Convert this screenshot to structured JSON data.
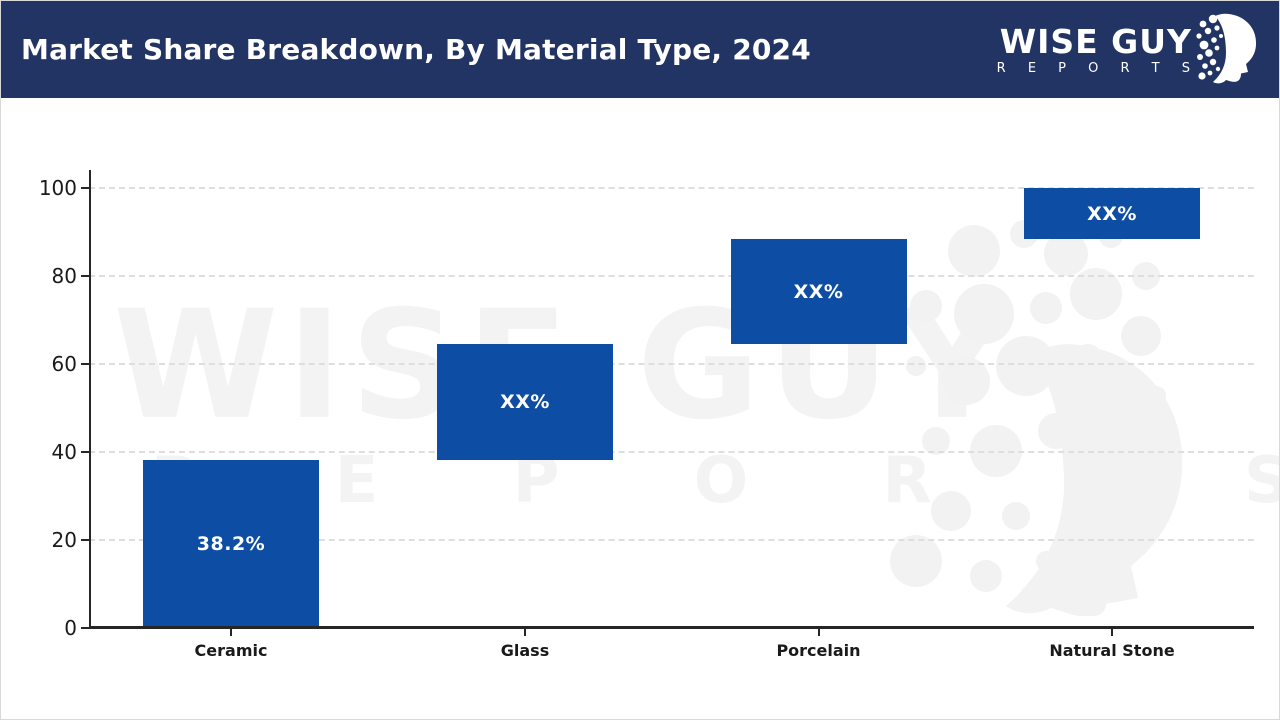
{
  "header": {
    "title": "Market Share Breakdown, By Material Type, 2024",
    "bg_color": "#213463",
    "logo": {
      "line1": "WISE GUY",
      "line2": "R E P O R T S"
    }
  },
  "watermark": {
    "line1": "WISE GUY",
    "line2": "R E P O R T S"
  },
  "chart_data": {
    "type": "bar",
    "subtype": "waterfall",
    "title": "Market Share Breakdown, By Material Type, 2024",
    "categories": [
      "Ceramic",
      "Glass",
      "Porcelain",
      "Natural Stone"
    ],
    "bars": [
      {
        "category": "Ceramic",
        "label": "38.2%",
        "start": 0,
        "end": 38.2
      },
      {
        "category": "Glass",
        "label": "XX%",
        "start": 38.2,
        "end": 64.5
      },
      {
        "category": "Porcelain",
        "label": "XX%",
        "start": 64.5,
        "end": 88.3
      },
      {
        "category": "Natural Stone",
        "label": "XX%",
        "start": 88.3,
        "end": 100
      }
    ],
    "y_ticks": [
      0,
      20,
      40,
      60,
      80,
      100
    ],
    "ylim": [
      0,
      104
    ],
    "xlabel": "",
    "ylabel": "",
    "grid": "horizontal-dashed",
    "legend": "none",
    "bar_color": "#0d4da3",
    "axis_color": "#262626",
    "grid_color": "#dedede"
  }
}
